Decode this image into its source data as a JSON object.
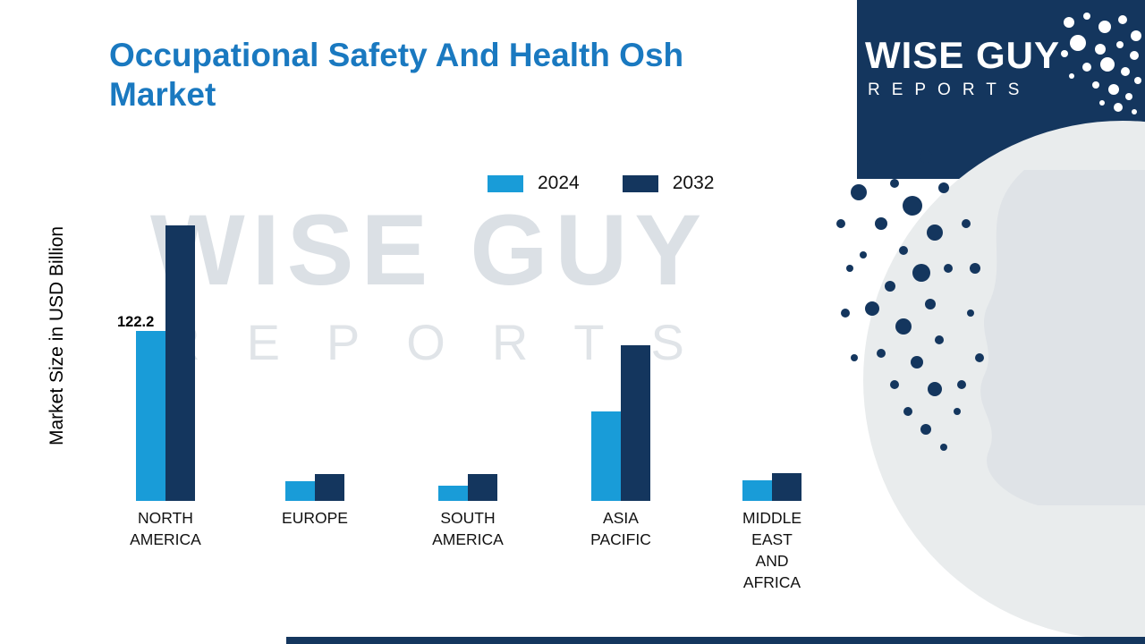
{
  "logo": {
    "line1": "WISE GUY",
    "line2": "REPORTS"
  },
  "watermark": {
    "line1": "WISE GUY",
    "line2": "REPORTS"
  },
  "colors": {
    "accent_blue": "#1a79c0",
    "series_2024": "#199cd8",
    "series_2032": "#14365e",
    "watermark": "#dbe0e5",
    "circle_gray": "#e9eced",
    "footer_navy": "#14365e"
  },
  "chart_data": {
    "type": "bar",
    "title": "Occupational Safety And Health Osh Market",
    "ylabel": "Market Size in USD Billion",
    "xlabel": "",
    "categories": [
      "NORTH AMERICA",
      "EUROPE",
      "SOUTH AMERICA",
      "ASIA PACIFIC",
      "MIDDLE EAST AND AFRICA"
    ],
    "category_lines": [
      [
        "NORTH",
        "AMERICA"
      ],
      [
        "EUROPE"
      ],
      [
        "SOUTH",
        "AMERICA"
      ],
      [
        "ASIA",
        "PACIFIC"
      ],
      [
        "MIDDLE",
        "EAST",
        "AND",
        "AFRICA"
      ]
    ],
    "series": [
      {
        "name": "2024",
        "color": "#199cd8",
        "values": [
          122.2,
          14,
          11,
          64,
          15
        ]
      },
      {
        "name": "2032",
        "color": "#14365e",
        "values": [
          198,
          19,
          19,
          112,
          20
        ]
      }
    ],
    "data_labels": [
      {
        "series": "2024",
        "category": "NORTH AMERICA",
        "text": "122.2"
      }
    ],
    "ylim": [
      0,
      200
    ],
    "grid": false,
    "legend_position": "top"
  }
}
